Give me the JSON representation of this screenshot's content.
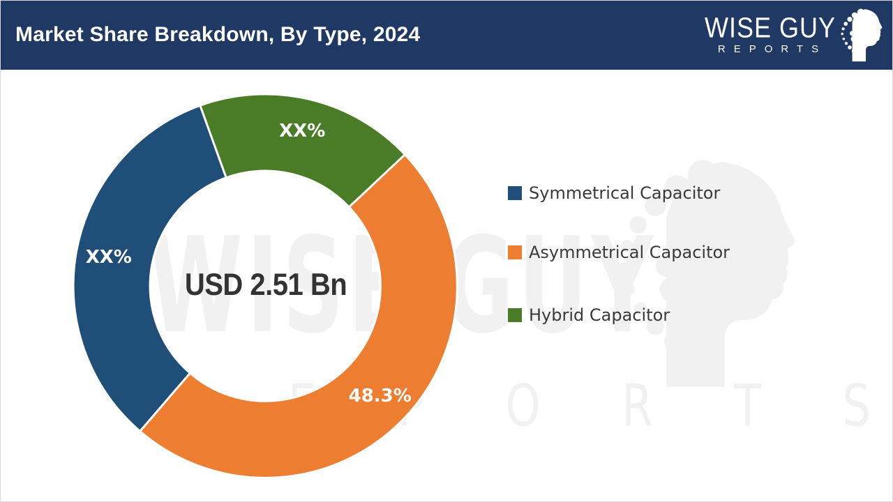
{
  "header": {
    "title": "Market Share Breakdown, By Type, 2024",
    "logo": {
      "line1": "WISE GUY",
      "line2": "REPORTS"
    }
  },
  "watermark": {
    "line1": "WISE GUY",
    "line2": "R E P O R T S"
  },
  "chart_data": {
    "type": "pie",
    "subtype": "donut",
    "title": "Market Share Breakdown, By Type, 2024",
    "center_label": "USD 2.51 Bn",
    "categories": [
      "Symmetrical Capacitor",
      "Asymmetrical Capacitor",
      "Hybrid Capacitor"
    ],
    "values": [
      33.2,
      48.3,
      18.5
    ],
    "displayed_labels": [
      "XX%",
      "48.3%",
      "XX%"
    ],
    "colors": [
      "#1F4E79",
      "#ED7D31",
      "#4A7C28"
    ],
    "legend_position": "right",
    "start_angle_deg": -19.8,
    "draw_order": [
      2,
      1,
      0
    ]
  },
  "colors": {
    "header_bg": "#203864",
    "header_text": "#FFFFFF",
    "page_bg": "#FFFFFF",
    "frame_border": "#D9D9D9",
    "watermark": "#F1F1F1",
    "legend_text": "#3A3A3A",
    "center_text": "#333333",
    "slice_label_text": "#FFFFFF"
  }
}
